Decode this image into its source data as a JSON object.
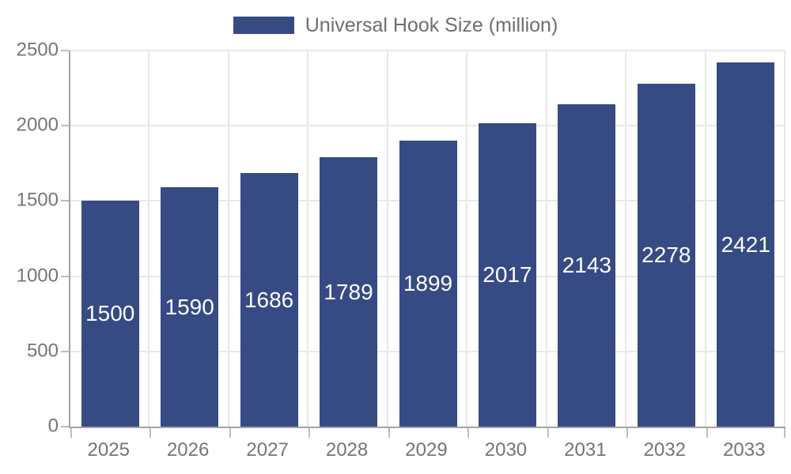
{
  "chart_data": {
    "type": "bar",
    "title": "",
    "legend": "Universal Hook Size (million)",
    "legend_position": "top-center",
    "categories": [
      "2025",
      "2026",
      "2027",
      "2028",
      "2029",
      "2030",
      "2031",
      "2032",
      "2033"
    ],
    "series": [
      {
        "name": "Universal Hook Size (million)",
        "values": [
          1500,
          1590,
          1686,
          1789,
          1899,
          2017,
          2143,
          2278,
          2421
        ]
      }
    ],
    "value_labels_shown": true,
    "xlabel": "",
    "ylabel": "",
    "ylim": [
      0,
      2500
    ],
    "yticks": [
      0,
      500,
      1000,
      1500,
      2000,
      2500
    ],
    "grid": true
  },
  "style": {
    "bar_color": "#364A84",
    "value_label_color": "#FFFFFF",
    "grid_color": "#E8E8E8",
    "axis_line_color": "#A3A3A3",
    "tick_color": "#BDBDBD",
    "axis_label_color": "#757575",
    "legend_text_color": "#6E6E6E",
    "background": "#FFFFFF"
  }
}
